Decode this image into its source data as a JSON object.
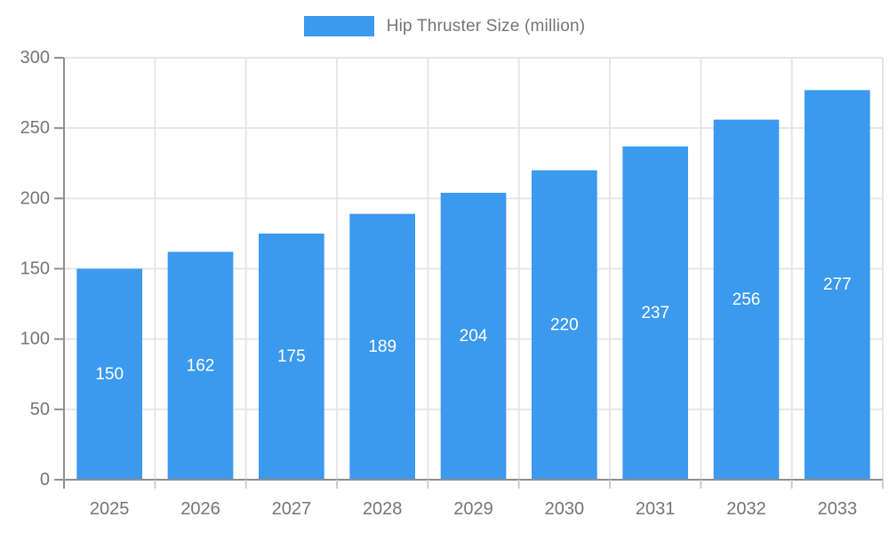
{
  "legend": {
    "label": "Hip Thruster Size (million)",
    "position": "top"
  },
  "colors": {
    "bar": "#3B99EE",
    "axis_line": "#8F8F8F",
    "grid_line": "#E6E6E6",
    "x_tick": "#CCCCCC",
    "axis_text": "#757575",
    "bar_label_text": "#FFFFFF",
    "background": "#FFFFFF"
  },
  "chart_data": {
    "type": "bar",
    "title": "",
    "categories": [
      "2025",
      "2026",
      "2027",
      "2028",
      "2029",
      "2030",
      "2031",
      "2032",
      "2033"
    ],
    "series": [
      {
        "name": "Hip Thruster Size (million)",
        "values": [
          150,
          162,
          175,
          189,
          204,
          220,
          237,
          256,
          277
        ]
      }
    ],
    "xlabel": "",
    "ylabel": "",
    "ylim": [
      0,
      300
    ],
    "yticks": [
      0,
      50,
      100,
      150,
      200,
      250,
      300
    ],
    "grid": true,
    "legend_position": "top",
    "bar_value_labels": "inside-center"
  }
}
